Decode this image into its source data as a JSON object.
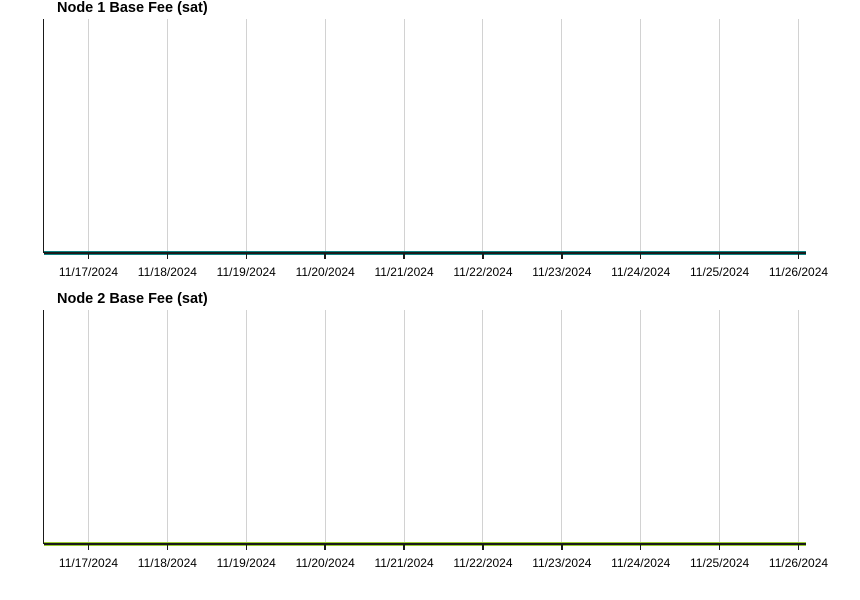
{
  "colors": {
    "background": "#ffffff",
    "gridline": "#d2d2d2",
    "axis": "#1a1a1a",
    "text": "#000000"
  },
  "charts": [
    {
      "title": "Node 1 Base Fee (sat)",
      "line_color": "#0f8383",
      "x_labels": [
        "11/17/2024",
        "11/18/2024",
        "11/19/2024",
        "11/20/2024",
        "11/21/2024",
        "11/22/2024",
        "11/23/2024",
        "11/24/2024",
        "11/25/2024",
        "11/26/2024"
      ]
    },
    {
      "title": "Node 2 Base Fee (sat)",
      "line_color": "#9acd32",
      "x_labels": [
        "11/17/2024",
        "11/18/2024",
        "11/19/2024",
        "11/20/2024",
        "11/21/2024",
        "11/22/2024",
        "11/23/2024",
        "11/24/2024",
        "11/25/2024",
        "11/26/2024"
      ]
    }
  ],
  "chart_data": [
    {
      "type": "line",
      "title": "Node 1 Base Fee (sat)",
      "x": [
        "11/17/2024",
        "11/18/2024",
        "11/19/2024",
        "11/20/2024",
        "11/21/2024",
        "11/22/2024",
        "11/23/2024",
        "11/24/2024",
        "11/25/2024",
        "11/26/2024"
      ],
      "series": [
        {
          "name": "Node 1 base fee",
          "values": [
            0,
            0,
            0,
            0,
            0,
            0,
            0,
            0,
            0,
            0
          ],
          "color": "#0f8383"
        }
      ],
      "xlabel": "",
      "ylabel": "",
      "y_axis_ticks": [],
      "grid": "vertical-only",
      "legend": "none",
      "line_shape": "flat line drawn along the x-axis (constant minimum value)"
    },
    {
      "type": "line",
      "title": "Node 2 Base Fee (sat)",
      "x": [
        "11/17/2024",
        "11/18/2024",
        "11/19/2024",
        "11/20/2024",
        "11/21/2024",
        "11/22/2024",
        "11/23/2024",
        "11/24/2024",
        "11/25/2024",
        "11/26/2024"
      ],
      "series": [
        {
          "name": "Node 2 base fee",
          "values": [
            0,
            0,
            0,
            0,
            0,
            0,
            0,
            0,
            0,
            0
          ],
          "color": "#9acd32"
        }
      ],
      "xlabel": "",
      "ylabel": "",
      "y_axis_ticks": [],
      "grid": "vertical-only",
      "legend": "none",
      "line_shape": "flat line drawn along the x-axis (constant minimum value)"
    }
  ]
}
